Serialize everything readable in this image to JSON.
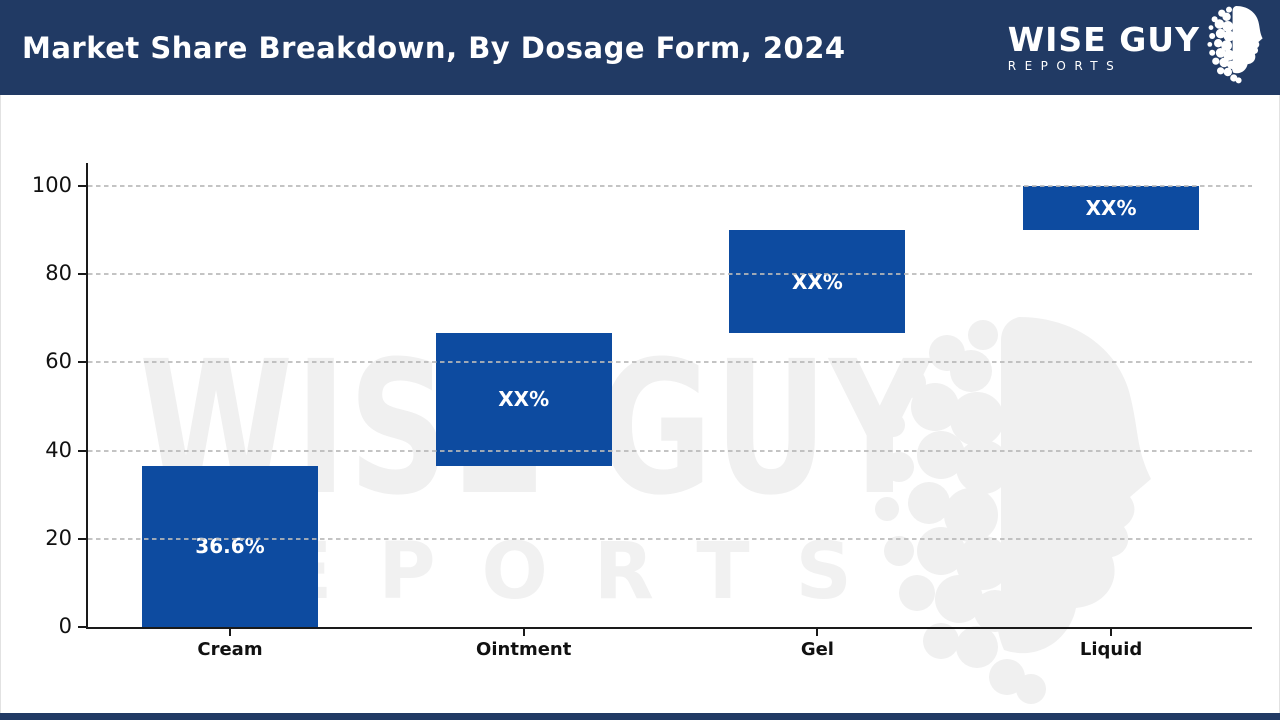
{
  "header": {
    "title": "Market Share Breakdown, By Dosage Form, 2024",
    "logo": {
      "line1": "WISE GUY",
      "line2": "REPORTS"
    }
  },
  "watermark": {
    "line1": "WISE GUY",
    "line2": "REPORTS"
  },
  "colors": {
    "header_navy": "#213A64",
    "bar_blue": "#0D4BA0",
    "gridline_gray": "#CCCCCC",
    "watermark_gray": "#F0F0F0"
  },
  "chart_data": {
    "type": "bar",
    "variant": "floating-waterfall",
    "title": "Market Share Breakdown, By Dosage Form, 2024",
    "categories": [
      "Cream",
      "Ointment",
      "Gel",
      "Liquid"
    ],
    "segments": [
      {
        "category": "Cream",
        "start": 0,
        "end": 36.6,
        "label": "36.6%"
      },
      {
        "category": "Ointment",
        "start": 36.6,
        "end": 66.6,
        "label": "XX%"
      },
      {
        "category": "Gel",
        "start": 66.6,
        "end": 90,
        "label": "XX%"
      },
      {
        "category": "Liquid",
        "start": 90,
        "end": 100,
        "label": "XX%"
      }
    ],
    "xlabel": "",
    "ylabel": "",
    "ylim": [
      0,
      100
    ],
    "yticks": [
      0,
      20,
      40,
      60,
      80,
      100
    ],
    "grid": {
      "horizontal": true,
      "style": "dashed",
      "drawn_over_bars": true
    },
    "legend": "none",
    "bar_color": "#0D4BA0",
    "bar_label_color": "#FFFFFF"
  }
}
